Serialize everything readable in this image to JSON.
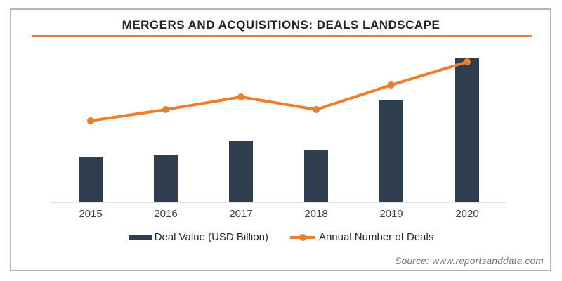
{
  "footer": {
    "source": "Source: www.reportsanddata.com"
  },
  "colors": {
    "bar": "#2f3e4e",
    "line": "#ee7e2d",
    "title_divider": "#dd7f3e",
    "frame_border": "#b5b5b5",
    "axis_line": "#d9d9d9",
    "title_text": "#20242e",
    "tick_text": "#404040",
    "legend_text": "#262626",
    "source_text": "#747474"
  },
  "chart_data": {
    "type": "bar+line",
    "title": "MERGERS AND ACQUISITIONS: DEALS LANDSCAPE",
    "categories": [
      "2015",
      "2016",
      "2017",
      "2018",
      "2019",
      "2020"
    ],
    "series": [
      {
        "name": "Deal Value (USD Billion)",
        "kind": "bar",
        "color": "#2f3e4e",
        "values": [
          32.5,
          33.5,
          44,
          37,
          73,
          102.5
        ]
      },
      {
        "name": "Annual Number of Deals",
        "kind": "line",
        "color": "#ee7e2d",
        "values": [
          58,
          66,
          75,
          66,
          83.5,
          100
        ]
      }
    ],
    "xlabel": "",
    "ylabel": "",
    "ylim": [
      0,
      105
    ],
    "units": "relative (no value axis shown; 2020 bar = 102.5, 2020 line = 100)",
    "value_axis_visible": false,
    "grid": "off",
    "legend_position": "bottom-center"
  }
}
